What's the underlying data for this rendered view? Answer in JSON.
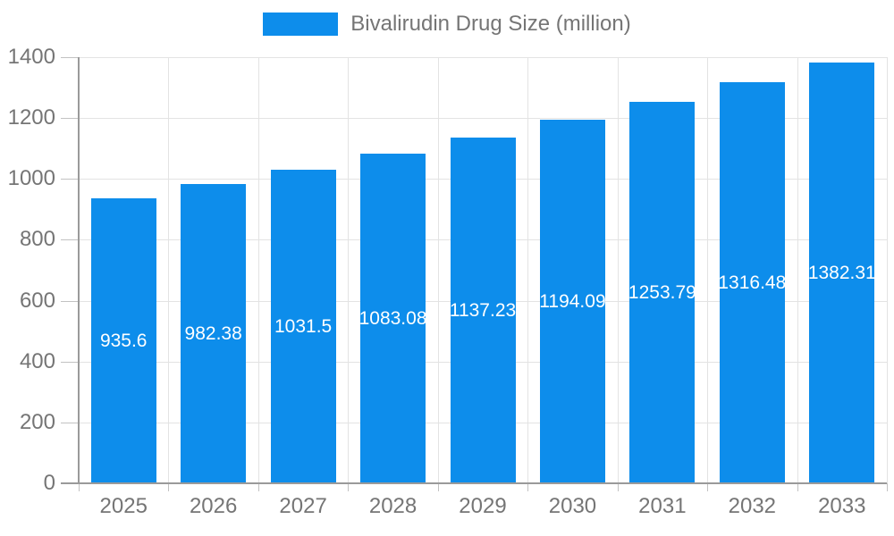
{
  "legend": {
    "label": "Bivalirudin Drug Size (million)"
  },
  "chart_data": {
    "type": "bar",
    "title": "",
    "legend": "Bivalirudin Drug Size (million)",
    "legend_position": "top",
    "categories": [
      "2025",
      "2026",
      "2027",
      "2028",
      "2029",
      "2030",
      "2031",
      "2032",
      "2033"
    ],
    "values": [
      935.6,
      982.38,
      1031.5,
      1083.08,
      1137.23,
      1194.09,
      1253.79,
      1316.48,
      1382.31
    ],
    "value_labels": [
      "935.6",
      "982.38",
      "1031.5",
      "1083.08",
      "1137.23",
      "1194.09",
      "1253.79",
      "1316.48",
      "1382.31"
    ],
    "xlabel": "",
    "ylabel": "",
    "ylim": [
      0,
      1400
    ],
    "yticks": [
      0,
      200,
      400,
      600,
      800,
      1000,
      1200,
      1400
    ],
    "grid": true,
    "bar_color": "#0d8deb",
    "axis_text_color": "#757575",
    "gridline_color": "#e3e3e3",
    "axis_line_color": "#9a9a9a",
    "bar_label_color": "#ffffff"
  }
}
